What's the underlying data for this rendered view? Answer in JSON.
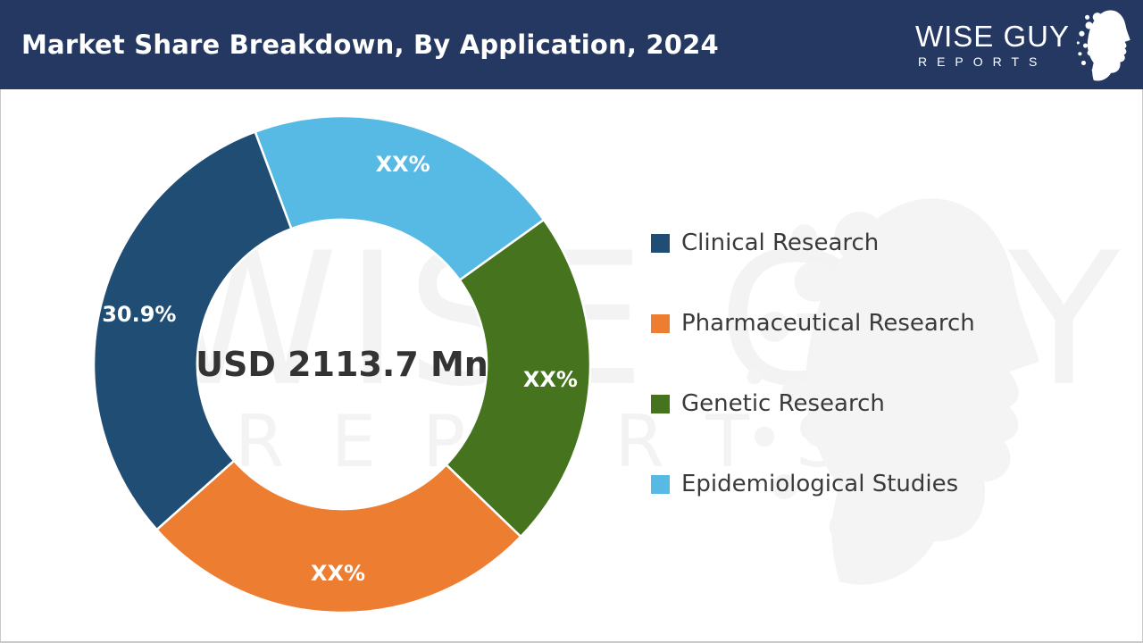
{
  "header": {
    "title": "Market Share Breakdown, By Application, 2024",
    "logo": {
      "name": "WISE GUY",
      "sub": "REPORTS"
    }
  },
  "watermark": {
    "line1": "WISE GUY",
    "line2": "REPORTS"
  },
  "chart_data": {
    "type": "donut",
    "title": "Market Share Breakdown, By Application, 2024",
    "center_label": "USD 2113.7 Mn",
    "start_angle_deg": -20.5,
    "inner_radius_ratio": 0.583,
    "legend_position": "right",
    "segments": [
      {
        "name": "Epidemiological Studies",
        "value": 20.8,
        "display": "XX%",
        "color": "#56BAE4"
      },
      {
        "name": "Genetic Research",
        "value": 22.1,
        "display": "XX%",
        "color": "#45731E"
      },
      {
        "name": "Pharmaceutical Research",
        "value": 26.2,
        "display": "XX%",
        "color": "#ED7D31"
      },
      {
        "name": "Clinical Research",
        "value": 30.9,
        "display": "30.9%",
        "color": "#1F4D74"
      }
    ],
    "legend_order": [
      3,
      2,
      1,
      0
    ],
    "label_color": "#ffffff",
    "center_label_color": "#333333"
  }
}
